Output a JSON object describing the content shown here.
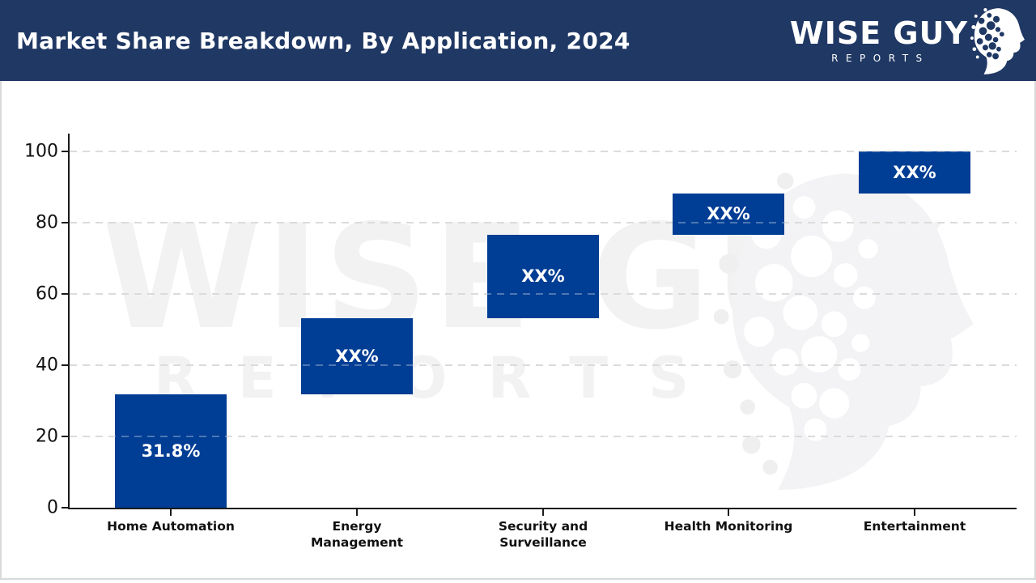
{
  "header": {
    "title": "Market Share Breakdown, By Application, 2024",
    "logo": {
      "line1": "WISE GUY",
      "line2": "REPORTS"
    }
  },
  "watermark": {
    "line1": "WISE GUY",
    "line2": "REPORTS"
  },
  "chart_data": {
    "type": "bar",
    "subtype": "waterfall",
    "title": "Market Share Breakdown, By Application, 2024",
    "xlabel": "",
    "ylabel": "",
    "categories": [
      "Home Automation",
      "Energy Management",
      "Security and Surveillance",
      "Health Monitoring",
      "Entertainment"
    ],
    "segments": [
      {
        "category": "Home Automation",
        "start": 0,
        "end": 31.8,
        "label": "31.8%"
      },
      {
        "category": "Energy Management",
        "start": 31.8,
        "end": 53.2,
        "label": "XX%"
      },
      {
        "category": "Security and Surveillance",
        "start": 53.2,
        "end": 76.6,
        "label": "XX%"
      },
      {
        "category": "Health Monitoring",
        "start": 76.6,
        "end": 88.2,
        "label": "XX%"
      },
      {
        "category": "Entertainment",
        "start": 88.2,
        "end": 100,
        "label": "XX%"
      }
    ],
    "yticks": [
      0,
      20,
      40,
      60,
      80,
      100
    ],
    "ylim": [
      0,
      105
    ],
    "grid": "horizontal-dashed",
    "legend": "none",
    "bar_color": "#003D94",
    "bar_label_color": "#ffffff",
    "header_color": "#203864"
  }
}
